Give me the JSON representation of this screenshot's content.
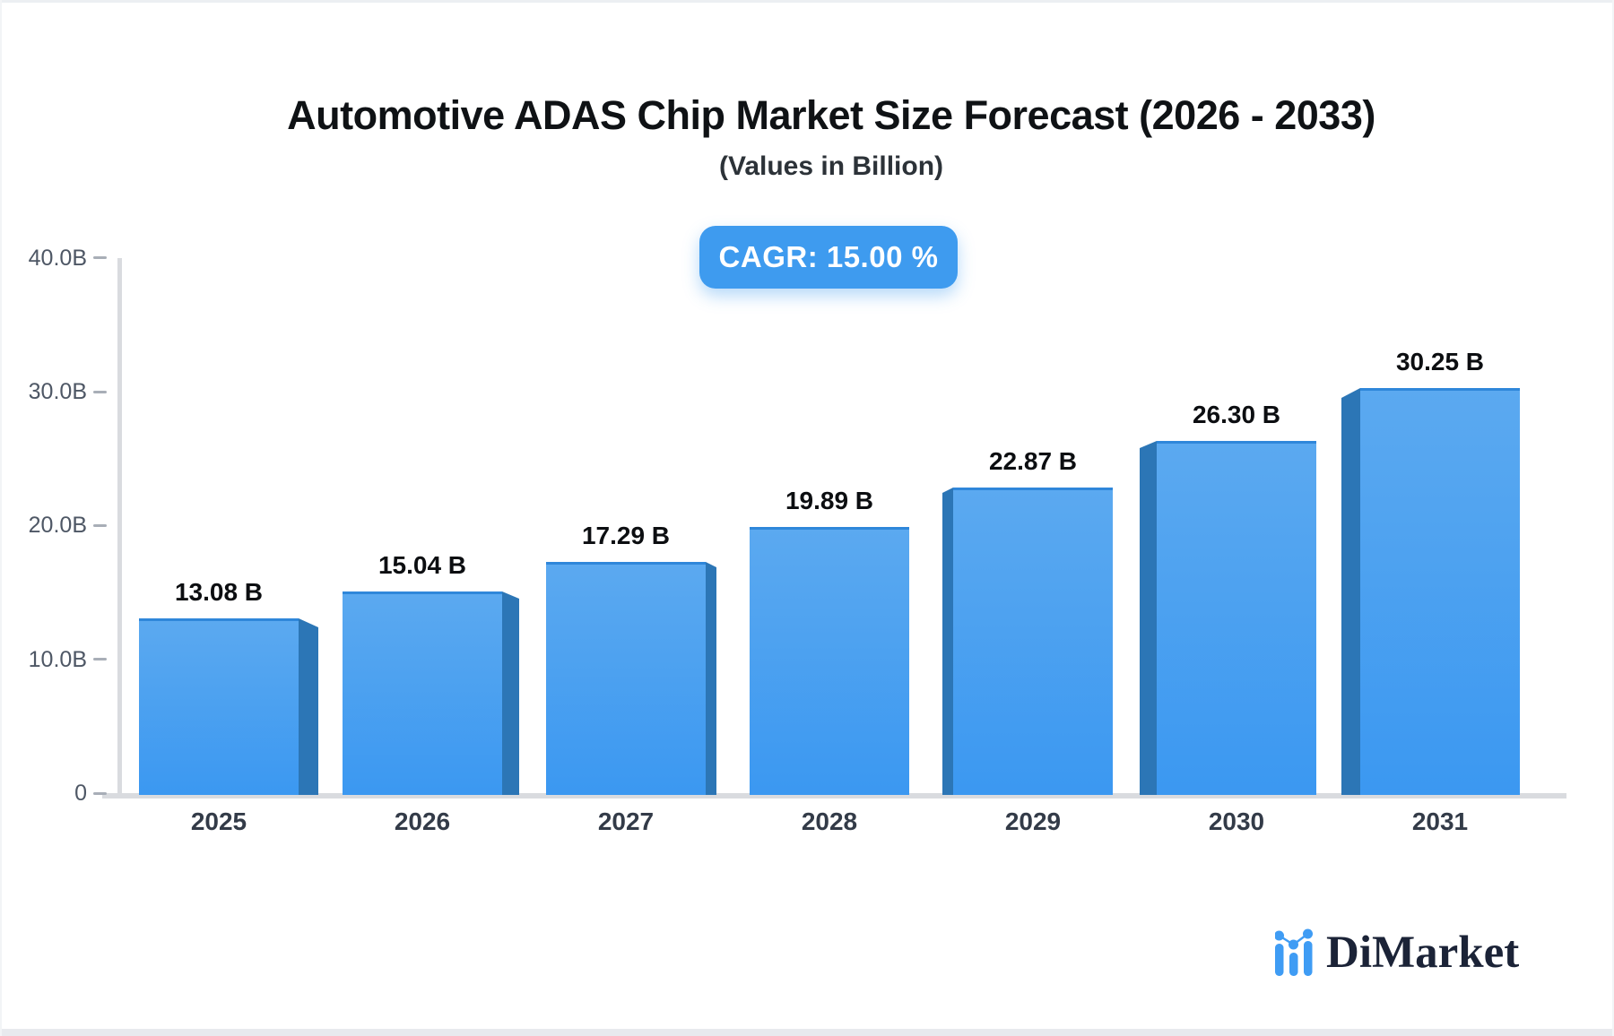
{
  "header": {
    "title": "Automotive ADAS Chip Market Size Forecast (2026 - 2033)",
    "subtitle": "(Values in Billion)",
    "cagr_label": "CAGR: 15.00 %"
  },
  "footer": {
    "brand": "DiMarket"
  },
  "colors": {
    "bar_front_top": "#5BA9F0",
    "bar_front_bottom": "#3B98F1",
    "bar_top_edge": "#2F87DA",
    "bar_side": "#2C76B6",
    "axis_line": "#D9DBDF",
    "tick_mark": "#A8AEB7",
    "y_label": "#4E5765",
    "x_label": "#333B48",
    "value_label": "#0C0E11",
    "badge_bg": "#3E9BEF",
    "badge_text": "#FFFFFF",
    "title_text": "#0F1215",
    "logo_blue": "#3F9CF4",
    "logo_navy": "#1B2337"
  },
  "chart_data": {
    "type": "bar",
    "title": "Automotive ADAS Chip Market Size Forecast (2026 - 2033)",
    "subtitle": "(Values in Billion)",
    "annotation": "CAGR: 15.00 %",
    "unit": "Billion USD",
    "categories": [
      "2025",
      "2026",
      "2027",
      "2028",
      "2029",
      "2030",
      "2031"
    ],
    "values": [
      13.08,
      15.04,
      17.29,
      19.89,
      22.87,
      26.3,
      30.25
    ],
    "value_labels": [
      "13.08 B",
      "15.04 B",
      "17.29 B",
      "19.89 B",
      "22.87 B",
      "26.30 B",
      "30.25 B"
    ],
    "ylim": [
      0,
      40
    ],
    "yticks": [
      {
        "value": 0,
        "label": "0"
      },
      {
        "value": 10,
        "label": "10.0B"
      },
      {
        "value": 20,
        "label": "20.0B"
      },
      {
        "value": 30,
        "label": "30.0B"
      },
      {
        "value": 40,
        "label": "40.0B"
      }
    ],
    "grid": false,
    "legend": "none",
    "style": "3d-perspective-bars, single blue series"
  }
}
